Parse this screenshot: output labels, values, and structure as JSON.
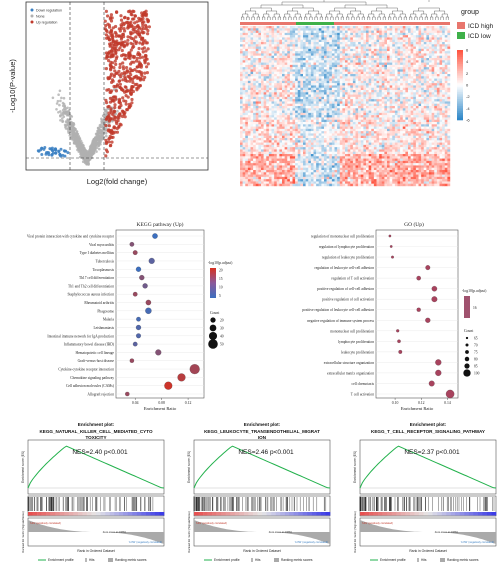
{
  "volcano": {
    "legend": [
      "Down regulation",
      "None",
      "Up regulation"
    ],
    "xlabel": "Log2(fold change)",
    "ylabel": "-Log10(P-value)",
    "colors": {
      "up": "#c0392b",
      "down": "#3a7fc2",
      "none": "#b0b0b0"
    }
  },
  "heatmap": {
    "legend_title": "group",
    "groups": [
      "ICD high",
      "ICD low"
    ],
    "group_colors": [
      "#e8766d",
      "#3fb049"
    ],
    "scale_ticks": [
      "6",
      "4",
      "2",
      "0",
      "-2",
      "-4",
      "-6"
    ]
  },
  "kegg": {
    "title": "KEGG pathway (Up)",
    "xlabel": "Enrichment Ratio",
    "xticks": [
      "0.04",
      "0.08",
      "0.12"
    ],
    "legend_color_title": "-log10(p.adjust)",
    "legend_color_ticks": [
      "20",
      "15",
      "10",
      "5"
    ],
    "legend_size_title": "Count",
    "legend_size_ticks": [
      "20",
      "30",
      "40",
      "50"
    ],
    "terms": [
      "Viral protein interaction with cytokine and cytokine receptor",
      "Viral myocarditis",
      "Type I diabetes mellitus",
      "Tuberculosis",
      "Toxoplasmosis",
      "Th17 cell differentiation",
      "Th1 and Th2 cell differentiation",
      "Staphylococcus aureus infection",
      "Rheumatoid arthritis",
      "Phagosome",
      "Malaria",
      "Leishmaniasis",
      "Intestinal immune network for IgA production",
      "Inflammatory bowel disease (IBD)",
      "Hematopoietic cell lineage",
      "Graft-versus-host disease",
      "Cytokine-cytokine receptor interaction",
      "Chemokine signaling pathway",
      "Cell adhesion molecules (CAMs)",
      "Allograft rejection"
    ],
    "ratios": [
      0.07,
      0.035,
      0.04,
      0.065,
      0.045,
      0.05,
      0.055,
      0.04,
      0.06,
      0.06,
      0.045,
      0.045,
      0.045,
      0.04,
      0.075,
      0.035,
      0.13,
      0.11,
      0.09,
      0.028
    ],
    "colors": [
      5,
      12,
      14,
      8,
      5,
      12,
      10,
      14,
      14,
      6,
      6,
      7,
      7,
      8,
      12,
      14,
      15,
      17,
      19,
      14
    ],
    "counts": [
      20,
      14,
      15,
      24,
      18,
      18,
      18,
      14,
      20,
      26,
      14,
      18,
      16,
      14,
      24,
      12,
      52,
      38,
      38,
      12
    ]
  },
  "go": {
    "title": "GO (Up)",
    "xlabel": "Enrichment Ratio",
    "xticks": [
      "0.10",
      "0.12",
      "0.14"
    ],
    "legend_color_title": "-log10(p.adjust)",
    "legend_color_ticks": [
      "16"
    ],
    "legend_size_title": "Count",
    "legend_size_ticks": [
      "65",
      "70",
      "75",
      "80",
      "85",
      "100"
    ],
    "terms": [
      "regulation of mononuclear cell proliferation",
      "regulation of lymphocyte proliferation",
      "regulation of leukocyte proliferation",
      "regulation of leukocyte cell-cell adhesion",
      "regulation of T cell activation",
      "positive regulation of cell-cell adhesion",
      "positive regulation of cell activation",
      "positive regulation of leukocyte cell-cell adhesion",
      "negative regulation of immune system process",
      "mononuclear cell proliferation",
      "lymphocyte proliferation",
      "leukocyte proliferation",
      "extracellular structure organization",
      "extracellular matrix organization",
      "cell chemotaxis",
      "T cell activation"
    ],
    "ratios": [
      0.096,
      0.097,
      0.098,
      0.125,
      0.118,
      0.13,
      0.13,
      0.118,
      0.125,
      0.102,
      0.103,
      0.104,
      0.133,
      0.133,
      0.128,
      0.142
    ],
    "counts": [
      65,
      65,
      66,
      78,
      76,
      82,
      84,
      74,
      80,
      68,
      70,
      72,
      86,
      86,
      84,
      100
    ]
  },
  "gsea": [
    {
      "header": "Enrichment plot:",
      "name": "KEGG_NATURAL_KILLER_CELL_MEDIATED_CYTOTOXICITY",
      "nes": "NES=2.40",
      "p": "p<0.001"
    },
    {
      "header": "Enrichment plot:",
      "name": "KEGG_LEUKOCYTE_TRANSENDOTHELIAL_MIGRATION",
      "nes": "NES=2.46",
      "p": "p<0.001"
    },
    {
      "header": "Enrichment plot:",
      "name": "KEGG_T_CELL_RECEPTOR_SIGNALING_PATHWAY",
      "nes": "NES=2.37",
      "p": "p<0.001"
    }
  ],
  "gsea_common": {
    "ylabel_top": "Enrichment score (ES)",
    "ylabel_bottom": "Ranked list metric (Signal2Noise)",
    "xlabel": "Rank in Ordered Dataset",
    "legend": [
      "Enrichment profile",
      "Hits",
      "Ranking metric scores"
    ],
    "zero_cross": "Zero cross at 20884",
    "pos_label": "'HIG' (positively correlated)",
    "neg_label": "'LOW' (negatively correlated)",
    "green": "#22b14c"
  }
}
